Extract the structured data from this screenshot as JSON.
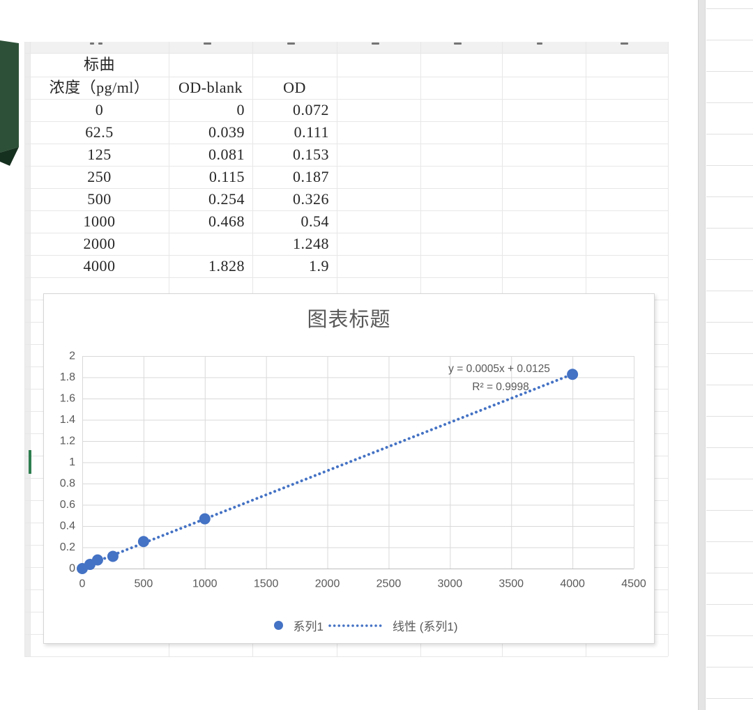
{
  "table": {
    "title_cell": "标曲",
    "headers": [
      "浓度（pg/ml）",
      "OD-blank",
      "OD"
    ],
    "rows": [
      [
        "0",
        "0",
        "0.072"
      ],
      [
        "62.5",
        "0.039",
        "0.111"
      ],
      [
        "125",
        "0.081",
        "0.153"
      ],
      [
        "250",
        "0.115",
        "0.187"
      ],
      [
        "500",
        "0.254",
        "0.326"
      ],
      [
        "1000",
        "0.468",
        "0.54"
      ],
      [
        "2000",
        "",
        "1.248"
      ],
      [
        "4000",
        "1.828",
        "1.9"
      ]
    ]
  },
  "chart_data": {
    "type": "scatter",
    "title": "图表标题",
    "series": [
      {
        "name": "系列1",
        "points": [
          [
            0,
            0
          ],
          [
            62.5,
            0.039
          ],
          [
            125,
            0.081
          ],
          [
            250,
            0.115
          ],
          [
            500,
            0.254
          ],
          [
            1000,
            0.468
          ],
          [
            4000,
            1.828
          ]
        ]
      }
    ],
    "trendline": {
      "name": "线性 (系列1)",
      "style": "dotted",
      "equation": "y = 0.0005x + 0.0125",
      "r_squared_label": "R² = 0.9998",
      "draw_from": [
        0,
        0.013
      ],
      "draw_to": [
        4000,
        1.829
      ]
    },
    "xlim": [
      0,
      4500
    ],
    "ylim": [
      0,
      2
    ],
    "x_ticks": [
      0,
      500,
      1000,
      1500,
      2000,
      2500,
      3000,
      3500,
      4000,
      4500
    ],
    "y_ticks": [
      0,
      0.2,
      0.4,
      0.6,
      0.8,
      1,
      1.2,
      1.4,
      1.6,
      1.8,
      2
    ],
    "grid": true,
    "legend_position": "bottom"
  },
  "colors": {
    "accent_blue": "#4472c4",
    "chart_text_gray": "#595959",
    "ribbon_green": "#2d5138",
    "ribbon_fold_green": "#16301f",
    "selection_green": "#2e7d4f"
  }
}
